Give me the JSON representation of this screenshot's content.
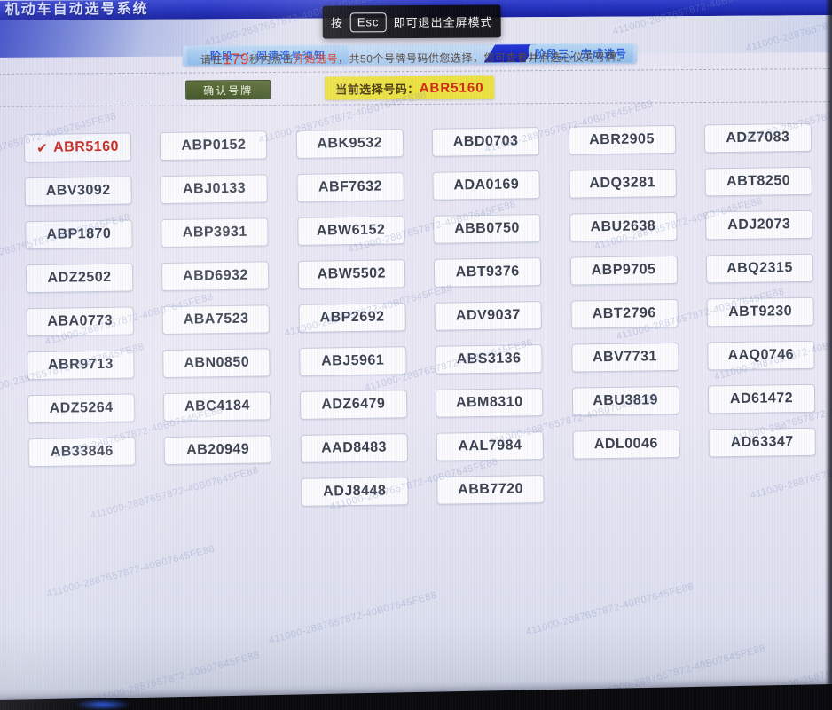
{
  "app": {
    "title": "机动车自动选号系统"
  },
  "esc_notice": {
    "prefix": "按",
    "key": "Esc",
    "suffix": "即可退出全屏模式"
  },
  "stages": [
    {
      "label": "阶段一：阅读选号须知"
    },
    {
      "label": "阶段三：完成选号"
    }
  ],
  "instruction": {
    "part1": "请在",
    "seconds": "179",
    "part2": "秒内点击",
    "link": "开始选号",
    "part3": "，共50个号牌号码供您选择，您可查看并点选心仪的号牌。"
  },
  "toolbar": {
    "confirm_label": "确认号牌",
    "current_label": "当前选择号码：",
    "current_plate": "ABR5160"
  },
  "icons": {
    "check": "✔"
  },
  "watermark": {
    "text": "411000-2887657872-40B07645FE88"
  },
  "colors": {
    "topbar_blue": "#2230bc",
    "tab_text_blue": "#2d5ed6",
    "accent_red": "#e23420",
    "selected_red": "#c9291b",
    "confirm_green": "#3f5323",
    "current_yellow": "#ece243"
  },
  "plates": [
    {
      "code": "ABR5160",
      "selected": true
    },
    {
      "code": "ABP0152",
      "selected": false
    },
    {
      "code": "ABK9532",
      "selected": false
    },
    {
      "code": "ABD0703",
      "selected": false
    },
    {
      "code": "ABR2905",
      "selected": false
    },
    {
      "code": "ADZ7083",
      "selected": false
    },
    {
      "code": "ABV3092",
      "selected": false
    },
    {
      "code": "ABJ0133",
      "selected": false
    },
    {
      "code": "ABF7632",
      "selected": false
    },
    {
      "code": "ADA0169",
      "selected": false
    },
    {
      "code": "ADQ3281",
      "selected": false
    },
    {
      "code": "ABT8250",
      "selected": false
    },
    {
      "code": "ABP1870",
      "selected": false
    },
    {
      "code": "ABP3931",
      "selected": false
    },
    {
      "code": "ABW6152",
      "selected": false
    },
    {
      "code": "ABB0750",
      "selected": false
    },
    {
      "code": "ABU2638",
      "selected": false
    },
    {
      "code": "ADJ2073",
      "selected": false
    },
    {
      "code": "ADZ2502",
      "selected": false
    },
    {
      "code": "ABD6932",
      "selected": false
    },
    {
      "code": "ABW5502",
      "selected": false
    },
    {
      "code": "ABT9376",
      "selected": false
    },
    {
      "code": "ABP9705",
      "selected": false
    },
    {
      "code": "ABQ2315",
      "selected": false
    },
    {
      "code": "ABA0773",
      "selected": false
    },
    {
      "code": "ABA7523",
      "selected": false
    },
    {
      "code": "ABP2692",
      "selected": false
    },
    {
      "code": "ADV9037",
      "selected": false
    },
    {
      "code": "ABT2796",
      "selected": false
    },
    {
      "code": "ABT9230",
      "selected": false
    },
    {
      "code": "ABR9713",
      "selected": false
    },
    {
      "code": "ABN0850",
      "selected": false
    },
    {
      "code": "ABJ5961",
      "selected": false
    },
    {
      "code": "ABS3136",
      "selected": false
    },
    {
      "code": "ABV7731",
      "selected": false
    },
    {
      "code": "AAQ0746",
      "selected": false
    },
    {
      "code": "ADZ5264",
      "selected": false
    },
    {
      "code": "ABC4184",
      "selected": false
    },
    {
      "code": "ADZ6479",
      "selected": false
    },
    {
      "code": "ABM8310",
      "selected": false
    },
    {
      "code": "ABU3819",
      "selected": false
    },
    {
      "code": "AD61472",
      "selected": false
    },
    {
      "code": "AB33846",
      "selected": false
    },
    {
      "code": "AB20949",
      "selected": false
    },
    {
      "code": "AAD8483",
      "selected": false
    },
    {
      "code": "AAL7984",
      "selected": false
    },
    {
      "code": "ADL0046",
      "selected": false
    },
    {
      "code": "AD63347",
      "selected": false
    },
    {
      "code": "ADJ8448",
      "selected": false
    },
    {
      "code": "ABB7720",
      "selected": false
    }
  ]
}
